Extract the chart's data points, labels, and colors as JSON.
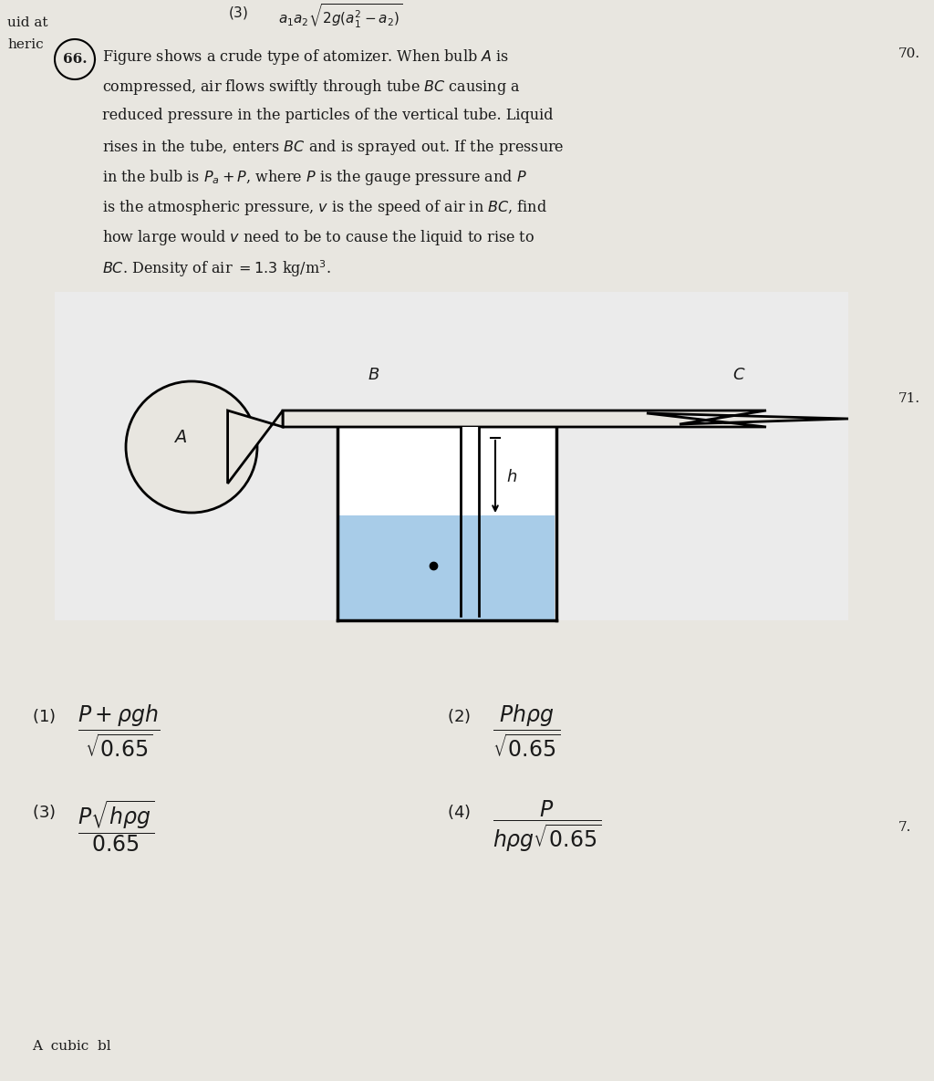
{
  "background_color": "#e8e6e0",
  "page_bg": "#f0eeea",
  "text_color": "#1a1a1a",
  "liquid_color": "#a8cce8",
  "line_texts": [
    "Figure shows a crude type of atomizer. When bulb $A$ is",
    "compressed, air flows swiftly through tube $BC$ causing a",
    "reduced pressure in the particles of the vertical tube. Liquid",
    "rises in the tube, enters $BC$ and is sprayed out. If the pressure",
    "in the bulb is $P_a + P$, where $P$ is the gauge pressure and $P$",
    "is the atmospheric pressure, $v$ is the speed of air in $BC$, find",
    "how large would $v$ need to be to cause the liquid to rise to",
    "$BC$. Density of air $= 1.3$ kg/m$^3$."
  ]
}
